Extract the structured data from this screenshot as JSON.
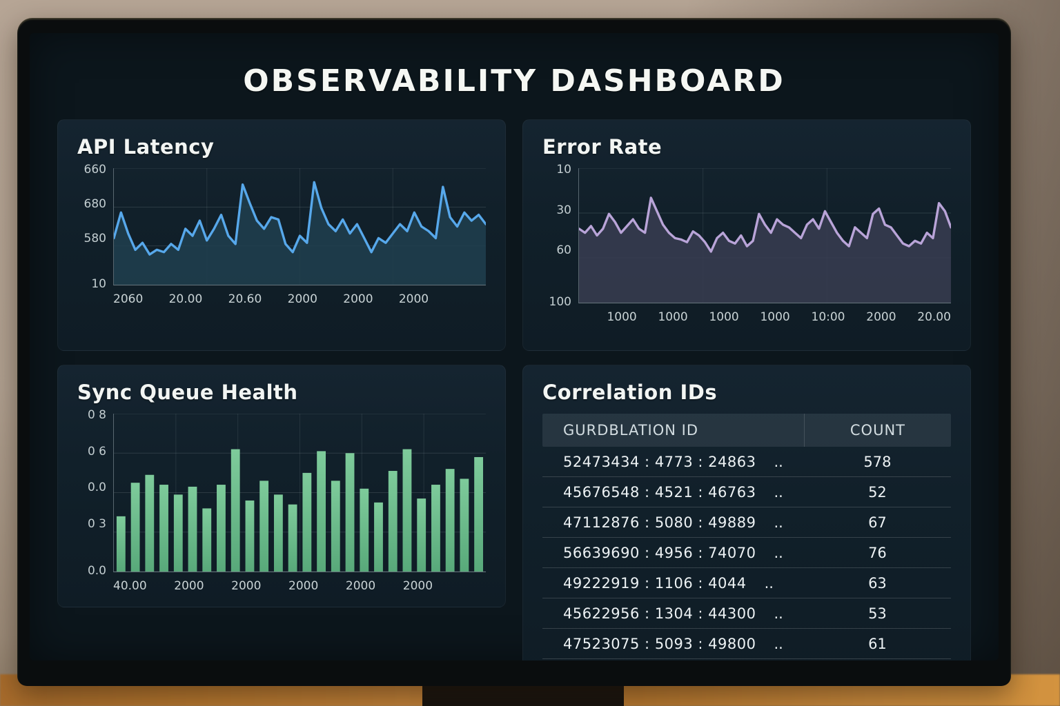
{
  "title": "OBSERVABILITY DASHBOARD",
  "panels": {
    "latency": {
      "title": "API Latency",
      "y_ticks": [
        "660",
        "680",
        "580",
        "10"
      ],
      "x_ticks": [
        "2060",
        "20.00",
        "20.60",
        "2000",
        "2000",
        "2000"
      ],
      "line_color": "#57a8eb",
      "fill_color": "#20404f"
    },
    "error": {
      "title": "Error Rate",
      "y_ticks": [
        "10",
        "30",
        "60",
        "100"
      ],
      "x_ticks": [
        "1000",
        "1000",
        "1000",
        "1000",
        "10:00",
        "2000",
        "20.00"
      ],
      "line_color": "#b9a4d8",
      "fill_color": "#383d51"
    },
    "queue": {
      "title": "Sync Queue Health",
      "y_ticks": [
        "0 8",
        "0 6",
        "0.0",
        "0 3",
        "0.0"
      ],
      "x_ticks": [
        "40.00",
        "2000",
        "2000",
        "2000",
        "2000",
        "2000"
      ],
      "bar_color_top": "#7ecb9b",
      "bar_color_bottom": "#58a97a"
    },
    "correlation": {
      "title": "Correlation IDs",
      "columns": [
        "GURDBLATION ID",
        "COUNT"
      ],
      "rows": [
        {
          "id": "52473434 : 4773 : 24863",
          "suffix": "..",
          "count": "578"
        },
        {
          "id": "45676548 : 4521 : 46763",
          "suffix": "..",
          "count": "52"
        },
        {
          "id": "47112876 : 5080 : 49889",
          "suffix": "..",
          "count": "67"
        },
        {
          "id": "56639690 : 4956 : 74070",
          "suffix": "..",
          "count": "76"
        },
        {
          "id": "49222919 : 1106 : 4044",
          "suffix": "..",
          "count": "63"
        },
        {
          "id": "45622956 : 1304 : 44300",
          "suffix": "..",
          "count": "53"
        },
        {
          "id": "47523075 : 5093 : 49800",
          "suffix": "..",
          "count": "61"
        }
      ]
    }
  },
  "chart_data": [
    {
      "type": "line",
      "title": "API Latency",
      "y_tick_labels": [
        "660",
        "680",
        "580",
        "10"
      ],
      "x_tick_labels": [
        "2060",
        "20.00",
        "20.60",
        "2000",
        "2000",
        "2000"
      ],
      "ylim": [
        0,
        1
      ],
      "legend": "none",
      "grid": true,
      "values": [
        0.4,
        0.62,
        0.44,
        0.3,
        0.36,
        0.26,
        0.3,
        0.28,
        0.35,
        0.3,
        0.48,
        0.42,
        0.55,
        0.38,
        0.48,
        0.6,
        0.42,
        0.35,
        0.86,
        0.7,
        0.55,
        0.48,
        0.58,
        0.56,
        0.35,
        0.28,
        0.42,
        0.36,
        0.88,
        0.66,
        0.52,
        0.46,
        0.56,
        0.44,
        0.52,
        0.4,
        0.28,
        0.4,
        0.36,
        0.44,
        0.52,
        0.46,
        0.62,
        0.5,
        0.46,
        0.4,
        0.84,
        0.58,
        0.5,
        0.62,
        0.55,
        0.6,
        0.52
      ],
      "vlines": [
        0.25,
        0.5,
        0.75
      ],
      "hlines": [
        0,
        0.3333,
        0.6667,
        1
      ]
    },
    {
      "type": "line",
      "title": "Error Rate",
      "y_tick_labels": [
        "10",
        "30",
        "60",
        "100"
      ],
      "x_tick_labels": [
        "1000",
        "1000",
        "1000",
        "1000",
        "10:00",
        "2000",
        "20.00"
      ],
      "ylim": [
        0,
        1
      ],
      "legend": "none",
      "grid": true,
      "values": [
        0.55,
        0.52,
        0.57,
        0.5,
        0.55,
        0.66,
        0.6,
        0.52,
        0.57,
        0.62,
        0.55,
        0.52,
        0.78,
        0.68,
        0.58,
        0.52,
        0.48,
        0.47,
        0.45,
        0.53,
        0.5,
        0.45,
        0.38,
        0.48,
        0.52,
        0.46,
        0.44,
        0.5,
        0.42,
        0.46,
        0.66,
        0.58,
        0.52,
        0.62,
        0.58,
        0.56,
        0.52,
        0.48,
        0.58,
        0.62,
        0.55,
        0.68,
        0.6,
        0.52,
        0.46,
        0.42,
        0.56,
        0.52,
        0.48,
        0.66,
        0.7,
        0.58,
        0.56,
        0.5,
        0.44,
        0.42,
        0.46,
        0.44,
        0.52,
        0.48,
        0.74,
        0.68,
        0.56
      ],
      "vlines": [
        0.3333,
        0.6667
      ],
      "hlines": [
        0,
        0.3333,
        0.6667,
        1
      ]
    },
    {
      "type": "bar",
      "title": "Sync Queue Health",
      "y_tick_labels": [
        "0 8",
        "0 6",
        "0.0",
        "0 3",
        "0.0"
      ],
      "x_tick_labels": [
        "40.00",
        "2000",
        "2000",
        "2000",
        "2000",
        "2000"
      ],
      "ylim": [
        0,
        0.8
      ],
      "legend": "none",
      "grid": true,
      "values": [
        0.28,
        0.45,
        0.49,
        0.44,
        0.39,
        0.43,
        0.32,
        0.44,
        0.62,
        0.36,
        0.46,
        0.39,
        0.34,
        0.5,
        0.61,
        0.46,
        0.6,
        0.42,
        0.35,
        0.51,
        0.62,
        0.37,
        0.44,
        0.52,
        0.47,
        0.58
      ],
      "vlines": [
        0.1667,
        0.3333,
        0.5,
        0.6667,
        0.8333
      ],
      "hlines": [
        0,
        0.25,
        0.5,
        0.75,
        1
      ]
    },
    {
      "type": "table",
      "title": "Correlation IDs",
      "columns": [
        "GURDBLATION ID",
        "COUNT"
      ],
      "rows": [
        [
          "52473434 : 4773 : 24863 ..",
          578
        ],
        [
          "45676548 : 4521 : 46763 ..",
          52
        ],
        [
          "47112876 : 5080 : 49889 ..",
          67
        ],
        [
          "56639690 : 4956 : 74070 ..",
          76
        ],
        [
          "49222919 : 1106 : 4044 ..",
          63
        ],
        [
          "45622956 : 1304 : 44300 ..",
          53
        ],
        [
          "47523075 : 5093 : 49800 ..",
          61
        ]
      ]
    }
  ]
}
